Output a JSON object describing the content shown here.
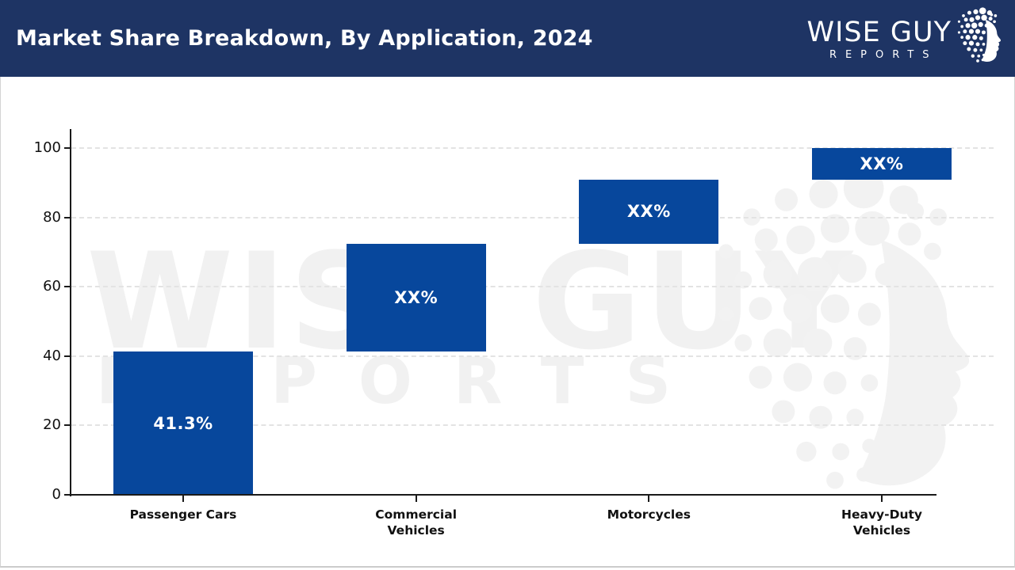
{
  "header": {
    "title": "Market Share Breakdown, By Application, 2024",
    "bg_color": "#1e3464",
    "text_color": "#ffffff",
    "logo": {
      "line1": "WISE GUY",
      "line2": "REPORTS"
    }
  },
  "watermark": {
    "line1": "WISE GUY",
    "line2": "REPORTS"
  },
  "chart_data": {
    "type": "bar",
    "subtype": "waterfall",
    "title": "Market Share Breakdown, By Application, 2024",
    "categories": [
      "Passenger Cars",
      "Commercial Vehicles",
      "Motorcycles",
      "Heavy-Duty Vehicles"
    ],
    "category_lines": [
      [
        "Passenger Cars"
      ],
      [
        "Commercial",
        "Vehicles"
      ],
      [
        "Motorcycles"
      ],
      [
        "Heavy-Duty",
        "Vehicles"
      ]
    ],
    "segments": [
      {
        "category": "Passenger Cars",
        "label": "41.3%",
        "start": 0,
        "end": 41.3
      },
      {
        "category": "Commercial Vehicles",
        "label": "XX%",
        "start": 41.3,
        "end": 72.4
      },
      {
        "category": "Motorcycles",
        "label": "XX%",
        "start": 72.4,
        "end": 90.9
      },
      {
        "category": "Heavy-Duty Vehicles",
        "label": "XX%",
        "start": 90.9,
        "end": 100
      }
    ],
    "ylim": [
      0,
      100
    ],
    "yticks": [
      0,
      20,
      40,
      60,
      80,
      100
    ],
    "grid": {
      "horizontal": true,
      "style": "dashed",
      "color": "#e3e3e3"
    },
    "legend": "none",
    "bar_color": "#07479c",
    "bar_label_color": "#ffffff",
    "axis_color": "#1a1a1a",
    "tick_label_color": "#111111"
  }
}
